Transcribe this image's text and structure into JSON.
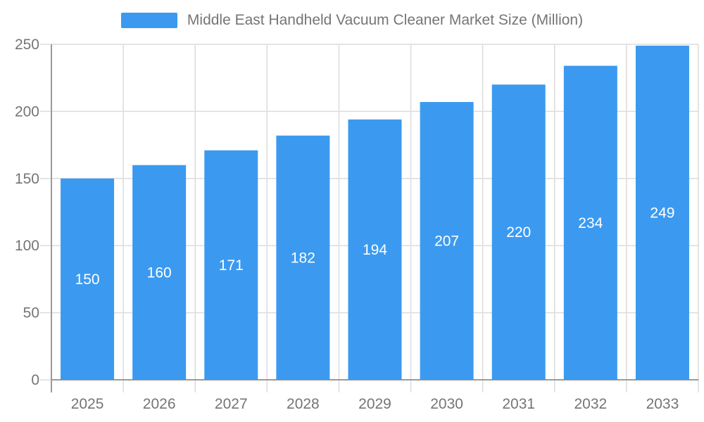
{
  "legend": {
    "label": "Middle East Handheld Vacuum Cleaner Market Size (Million)"
  },
  "chart_data": {
    "type": "bar",
    "title": "Middle East Handheld Vacuum Cleaner Market Size (Million)",
    "series_name": "Middle East Handheld Vacuum Cleaner Market Size (Million)",
    "categories": [
      "2025",
      "2026",
      "2027",
      "2028",
      "2029",
      "2030",
      "2031",
      "2032",
      "2033"
    ],
    "values": [
      150,
      160,
      171,
      182,
      194,
      207,
      220,
      234,
      249
    ],
    "data_labels": [
      "150",
      "160",
      "171",
      "182",
      "194",
      "207",
      "220",
      "234",
      "249"
    ],
    "xlabel": "",
    "ylabel": "",
    "ylim": [
      0,
      250
    ],
    "y_ticks": [
      0,
      50,
      100,
      150,
      200,
      250
    ],
    "grid": true,
    "legend_position": "top",
    "colors": {
      "bar": "#3b9af0",
      "data_label": "#ffffff",
      "axis_line": "#9a9a9a",
      "grid_line": "#dcdcdc",
      "tick_text": "#757575",
      "legend_text": "#757575",
      "background": "#ffffff"
    }
  }
}
